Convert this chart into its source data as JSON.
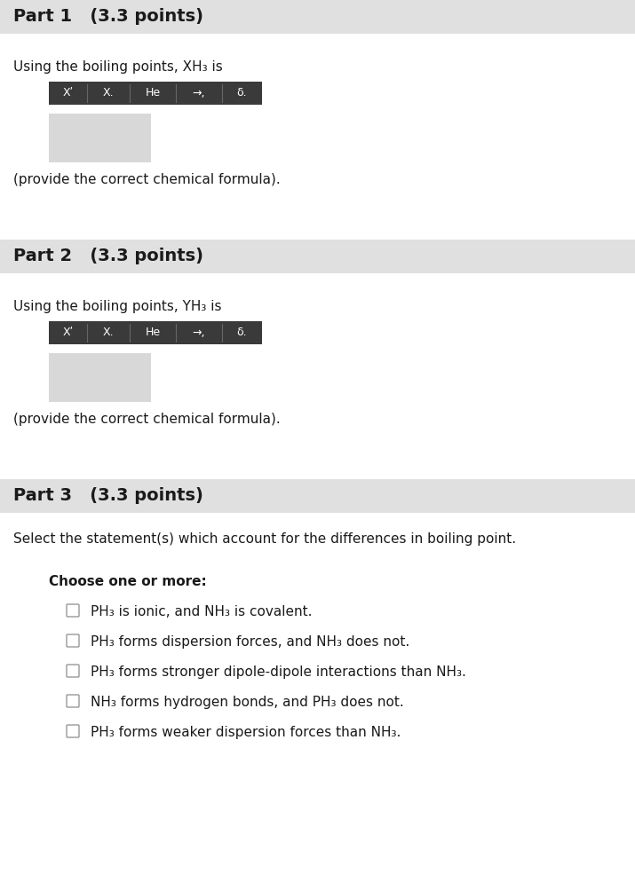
{
  "bg_color": "#ffffff",
  "header_bg": "#e0e0e0",
  "dark_toolbar_bg": "#3a3a3a",
  "toolbar_text_color": "#ffffff",
  "toolbar_divider_color": "#666666",
  "answer_box_color": "#d8d8d8",
  "part1_header": "Part 1   (3.3 points)",
  "part1_question": "Using the boiling points, XH₃ is",
  "part1_formula": "(provide the correct chemical formula).",
  "part2_header": "Part 2   (3.3 points)",
  "part2_question": "Using the boiling points, YH₃ is",
  "part2_formula": "(provide the correct chemical formula).",
  "part3_header": "Part 3   (3.3 points)",
  "part3_question": "Select the statement(s) which account for the differences in boiling point.",
  "choose_label": "Choose one or more:",
  "options": [
    "PH₃ is ionic, and NH₃ is covalent.",
    "PH₃ forms dispersion forces, and NH₃ does not.",
    "PH₃ forms stronger dipole-dipole interactions than NH₃.",
    "NH₃ forms hydrogen bonds, and PH₃ does not.",
    "PH₃ forms weaker dispersion forces than NH₃."
  ],
  "toolbar_items": [
    "Xʹ",
    "X.",
    "He",
    "→,",
    "δ."
  ],
  "figwidth": 7.15,
  "figheight": 9.85,
  "dpi": 100
}
